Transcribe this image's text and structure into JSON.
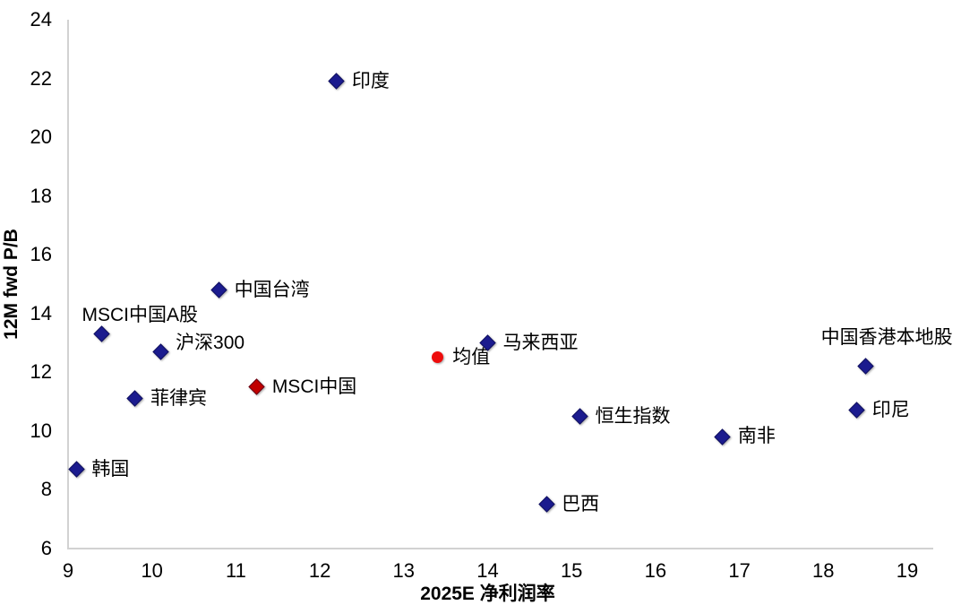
{
  "chart_data": {
    "type": "scatter",
    "title": "",
    "xlabel": "2025E 净利润率",
    "ylabel": "12M fwd P/B",
    "xlim": [
      9,
      19
    ],
    "ylim": [
      6,
      24
    ],
    "x_ticks": [
      9,
      10,
      11,
      12,
      13,
      14,
      15,
      16,
      17,
      18,
      19
    ],
    "y_ticks": [
      6,
      8,
      10,
      12,
      14,
      16,
      18,
      20,
      22,
      24
    ],
    "grid": false,
    "legend": "none",
    "colors": {
      "index_marker": "#1b1b8e",
      "msci_china_marker": "#c00000",
      "mean_marker": "#ee0c0c",
      "axis_line": "#d2d2d2",
      "text": "#000000"
    },
    "points": [
      {
        "label": "印度",
        "x": 12.2,
        "y": 21.9,
        "marker": "diamond",
        "color": "#1b1b8e",
        "label_pos": "right"
      },
      {
        "label": "中国台湾",
        "x": 10.8,
        "y": 14.8,
        "marker": "diamond",
        "color": "#1b1b8e",
        "label_pos": "right"
      },
      {
        "label": "MSCI中国A股",
        "x": 9.4,
        "y": 13.3,
        "marker": "diamond",
        "color": "#1b1b8e",
        "label_pos": "above-left"
      },
      {
        "label": "沪深300",
        "x": 10.1,
        "y": 12.7,
        "marker": "diamond",
        "color": "#1b1b8e",
        "label_pos": "right",
        "label_dy": -9
      },
      {
        "label": "菲律宾",
        "x": 9.8,
        "y": 11.1,
        "marker": "diamond",
        "color": "#1b1b8e",
        "label_pos": "right"
      },
      {
        "label": "MSCI中国",
        "x": 11.25,
        "y": 11.5,
        "marker": "diamond",
        "color": "#c00000",
        "label_pos": "right"
      },
      {
        "label": "均值",
        "x": 13.4,
        "y": 12.5,
        "marker": "circle",
        "color": "#ee0c0c",
        "label_pos": "right"
      },
      {
        "label": "马来西亚",
        "x": 14.0,
        "y": 13.0,
        "marker": "diamond",
        "color": "#1b1b8e",
        "label_pos": "right"
      },
      {
        "label": "中国香港本地股",
        "x": 18.5,
        "y": 12.2,
        "marker": "diamond",
        "color": "#1b1b8e",
        "label_pos": "above"
      },
      {
        "label": "印尼",
        "x": 18.4,
        "y": 10.7,
        "marker": "diamond",
        "color": "#1b1b8e",
        "label_pos": "right"
      },
      {
        "label": "恒生指数",
        "x": 15.1,
        "y": 10.5,
        "marker": "diamond",
        "color": "#1b1b8e",
        "label_pos": "right"
      },
      {
        "label": "南非",
        "x": 16.8,
        "y": 9.8,
        "marker": "diamond",
        "color": "#1b1b8e",
        "label_pos": "right"
      },
      {
        "label": "韩国",
        "x": 9.1,
        "y": 8.7,
        "marker": "diamond",
        "color": "#1b1b8e",
        "label_pos": "right"
      },
      {
        "label": "巴西",
        "x": 14.7,
        "y": 7.5,
        "marker": "diamond",
        "color": "#1b1b8e",
        "label_pos": "right"
      }
    ]
  }
}
